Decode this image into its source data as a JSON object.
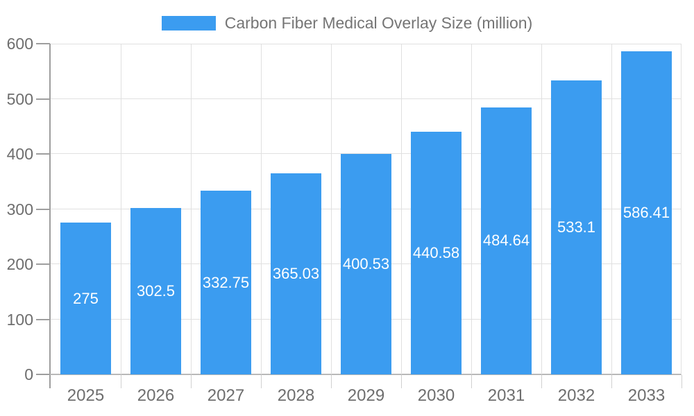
{
  "chart_data": {
    "type": "bar",
    "title": "Carbon Fiber Medical Overlay Size (million)",
    "series_name": "Carbon Fiber Medical Overlay Size (million)",
    "categories": [
      "2025",
      "2026",
      "2027",
      "2028",
      "2029",
      "2030",
      "2031",
      "2032",
      "2033"
    ],
    "values": [
      275,
      302.5,
      332.75,
      365.03,
      400.53,
      440.58,
      484.64,
      533.1,
      586.41
    ],
    "value_labels": [
      "275",
      "302.5",
      "332.75",
      "365.03",
      "400.53",
      "440.58",
      "484.64",
      "533.1",
      "586.41"
    ],
    "xlabel": "",
    "ylabel": "",
    "ylim": [
      0,
      600
    ],
    "yticks": [
      0,
      100,
      200,
      300,
      400,
      500,
      600
    ],
    "grid": true,
    "legend_position": "top"
  },
  "colors": {
    "bar": "#3b9cf0",
    "grid": "#e0e0e0",
    "axis_line": "#9e9e9e",
    "x_axis_line": "#b8b8b8",
    "x_tick": "#d0d0d0",
    "axis_text": "#6e6e6e",
    "legend_text": "#757575",
    "value_label_text": "#ffffff",
    "background": "#ffffff"
  }
}
